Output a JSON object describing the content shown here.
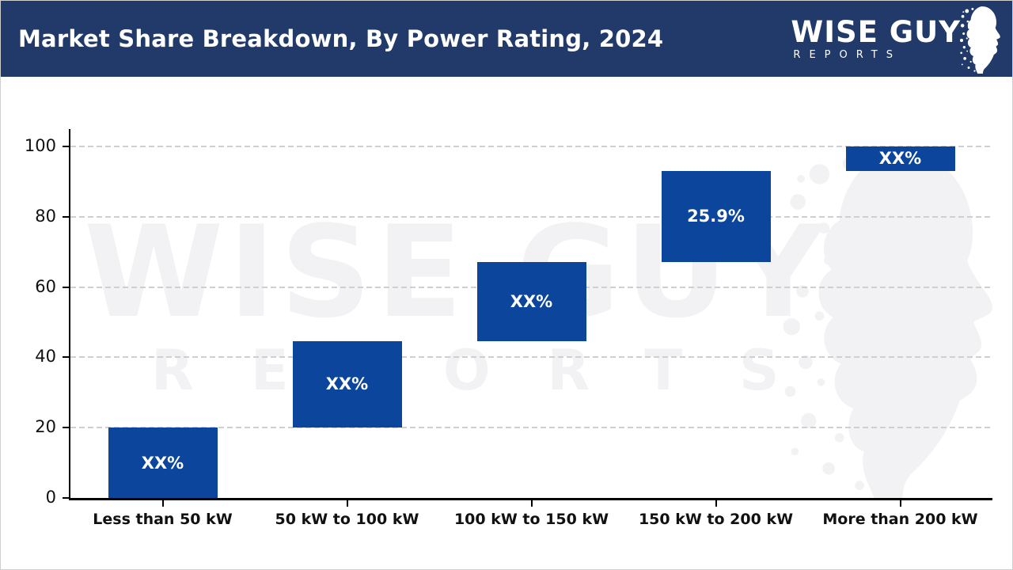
{
  "header": {
    "title": "Market Share Breakdown, By Power Rating, 2024",
    "logo": {
      "line1": "WISE GUY",
      "line2": "REPORTS"
    }
  },
  "watermark": {
    "line1": "WISE GUY",
    "line2": "REPORTS"
  },
  "chart_data": {
    "type": "bar",
    "subtype": "floating-waterfall",
    "title": "Market Share Breakdown, By Power Rating, 2024",
    "categories": [
      "Less than 50 kW",
      "50 kW to 100 kW",
      "100 kW to 150 kW",
      "150 kW to 200 kW",
      "More than 200 kW"
    ],
    "segments": [
      {
        "category": "Less than 50 kW",
        "start": 0,
        "end": 20,
        "value": 20,
        "label": "XX%"
      },
      {
        "category": "50 kW to 100 kW",
        "start": 20,
        "end": 44.7,
        "value": 24.7,
        "label": "XX%"
      },
      {
        "category": "100 kW to 150 kW",
        "start": 44.7,
        "end": 67.2,
        "value": 22.5,
        "label": "XX%"
      },
      {
        "category": "150 kW to 200 kW",
        "start": 67.2,
        "end": 93.1,
        "value": 25.9,
        "label": "25.9%"
      },
      {
        "category": "More than 200 kW",
        "start": 93.1,
        "end": 100,
        "value": 6.9,
        "label": "XX%"
      }
    ],
    "xlabel": "",
    "ylabel": "",
    "ylim": [
      0,
      105
    ],
    "yticks": [
      0,
      20,
      40,
      60,
      80,
      100
    ],
    "grid": "horizontal-dashed",
    "legend": "none"
  },
  "colors": {
    "header_bg": "#213a69",
    "header_text": "#ffffff",
    "bar": "#0b459c",
    "bar_label": "#ffffff",
    "grid": "#cfcfcf",
    "axis": "#000000",
    "watermark": "#f2f2f4",
    "logo_face": "#ffffff"
  }
}
